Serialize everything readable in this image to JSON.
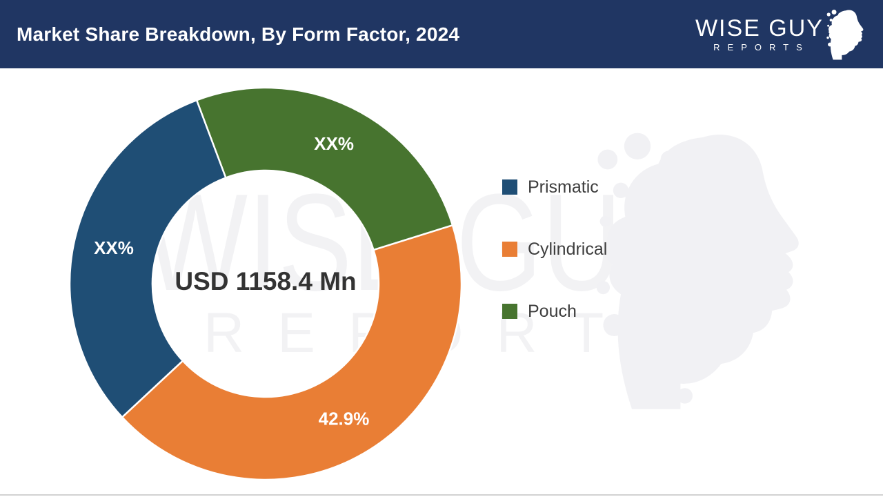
{
  "header": {
    "title": "Market Share Breakdown, By Form Factor, 2024",
    "logo": {
      "line1": "WISE GUY",
      "line2": "REPORTS"
    }
  },
  "watermark": {
    "line1": "WISE GUY",
    "line2": "REPORTS"
  },
  "chart_data": {
    "type": "pie",
    "subtype": "donut",
    "title": "Market Share Breakdown, By Form Factor, 2024",
    "center_label": "USD 1158.4 Mn",
    "legend_position": "right",
    "start_angle_deg": 110.6,
    "slices": [
      {
        "name": "Pouch",
        "displayed_label": "XX%",
        "value_pct": 25.9,
        "color": "#47742F"
      },
      {
        "name": "Cylindrical",
        "displayed_label": "42.9%",
        "value_pct": 42.9,
        "color": "#E97E35"
      },
      {
        "name": "Prismatic",
        "displayed_label": "XX%",
        "value_pct": 31.2,
        "color": "#1F4E75"
      }
    ]
  },
  "legend": {
    "items": [
      {
        "label": "Prismatic",
        "color": "#1F4E75"
      },
      {
        "label": "Cylindrical",
        "color": "#E97E35"
      },
      {
        "label": "Pouch",
        "color": "#47742F"
      }
    ]
  }
}
